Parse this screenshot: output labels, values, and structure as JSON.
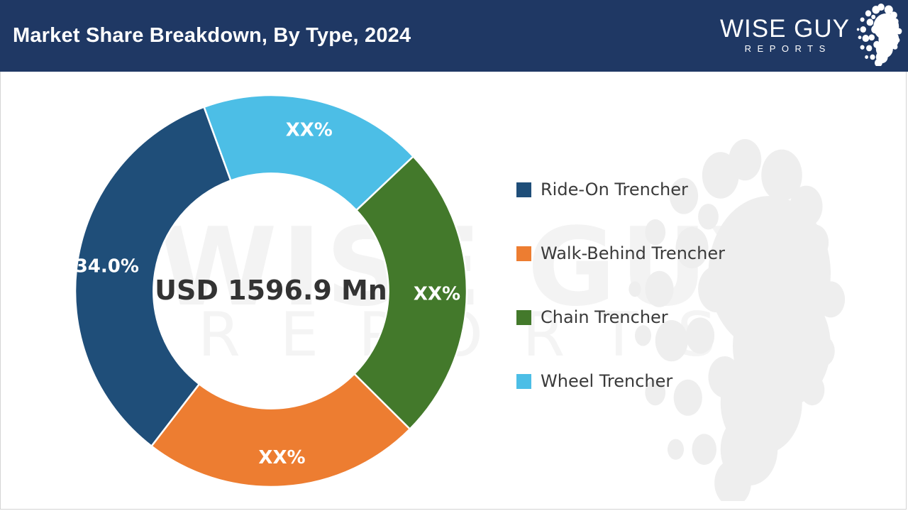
{
  "header": {
    "title": "Market Share Breakdown, By Type, 2024",
    "bg_color": "#1F3864",
    "brand": {
      "line1": "WISE GUY",
      "line2": "REPORTS"
    }
  },
  "watermark": {
    "line1": "WISE GUY",
    "line2": "REPORTS"
  },
  "chart_data": {
    "type": "pie",
    "subtype": "donut",
    "title": "Market Share Breakdown, By Type, 2024",
    "center_label": "USD 1596.9 Mn",
    "start_angle_deg": 110,
    "direction": "counterclockwise",
    "inner_radius_ratio": 0.6,
    "legend_position": "right",
    "categories": [
      "Ride-On Trencher",
      "Walk-Behind Trencher",
      "Chain Trencher",
      "Wheel Trencher"
    ],
    "values": [
      34.0,
      23.0,
      24.5,
      18.5
    ],
    "values_note": "only Ride-On share is printed on chart; others masked as XX%",
    "segments": [
      {
        "label": "Ride-On Trencher",
        "value_pct": 34.0,
        "display": "34.0%",
        "color": "#1F4E79"
      },
      {
        "label": "Walk-Behind Trencher",
        "value_pct": 23.0,
        "display": "XX%",
        "color": "#ED7D31"
      },
      {
        "label": "Chain Trencher",
        "value_pct": 24.5,
        "display": "XX%",
        "color": "#43792B"
      },
      {
        "label": "Wheel Trencher",
        "value_pct": 18.5,
        "display": "XX%",
        "color": "#4CBEE6"
      }
    ],
    "colors": {
      "label_text": "#ffffff",
      "center_text": "#333333",
      "legend_text": "#3a3a3a",
      "separator": "#ffffff"
    }
  }
}
